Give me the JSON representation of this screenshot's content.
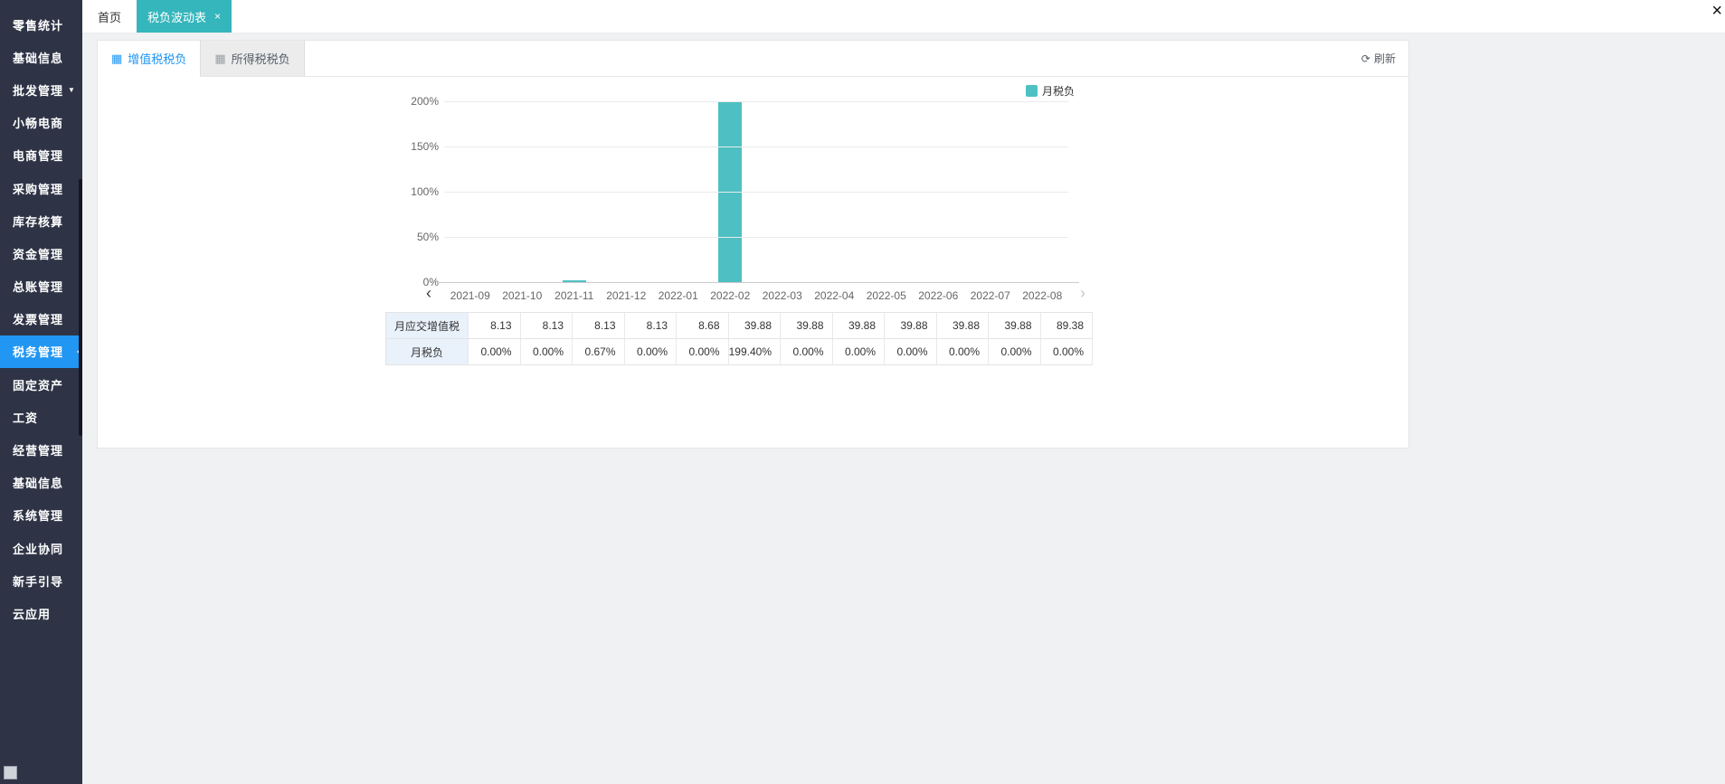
{
  "window": {
    "close_icon": "×"
  },
  "icons": {
    "tab_icon": "▦",
    "refresh_icon": "⟳",
    "caret_icon": "▼",
    "tab_close_icon": "×",
    "prev_icon": "‹",
    "next_icon": "›"
  },
  "colors": {
    "sidebar_bg": "#2e3446",
    "sidebar_active": "#2196f3",
    "doc_tab_teal": "#34b6bc",
    "bar_teal": "#4ec0c3",
    "panel_tab_active_text": "#2196f3",
    "table_label_bg": "#e9f1fb"
  },
  "sidebar": {
    "items": [
      {
        "label": "零售统计"
      },
      {
        "label": "基础信息"
      },
      {
        "label": "批发管理",
        "has_dropdown": true
      },
      {
        "label": "小畅电商"
      },
      {
        "label": "电商管理"
      },
      {
        "label": "采购管理"
      },
      {
        "label": "库存核算"
      },
      {
        "label": "资金管理"
      },
      {
        "label": "总账管理"
      },
      {
        "label": "发票管理"
      },
      {
        "label": "税务管理",
        "active": true
      },
      {
        "label": "固定资产"
      },
      {
        "label": "工资"
      },
      {
        "label": "经营管理"
      },
      {
        "label": "基础信息"
      },
      {
        "label": "系统管理"
      },
      {
        "label": "企业协同"
      },
      {
        "label": "新手引导"
      },
      {
        "label": "云应用"
      }
    ]
  },
  "tabbar": {
    "home_tab": "首页",
    "active_tab": "税负波动表"
  },
  "panel": {
    "tabs": [
      {
        "label": "增值税税负",
        "active": true
      },
      {
        "label": "所得税税负",
        "active": false
      }
    ],
    "refresh_label": "刷新"
  },
  "chart_data": {
    "type": "bar",
    "title": "",
    "categories": [
      "2021-09",
      "2021-10",
      "2021-11",
      "2021-12",
      "2022-01",
      "2022-02",
      "2022-03",
      "2022-04",
      "2022-05",
      "2022-06",
      "2022-07",
      "2022-08"
    ],
    "series": [
      {
        "name": "月税负",
        "values": [
          0,
          0,
          0.67,
          0,
          0,
          199.4,
          0,
          0,
          0,
          0,
          0,
          0
        ]
      }
    ],
    "y_ticks": [
      "200%",
      "150%",
      "100%",
      "50%",
      "0%"
    ],
    "ylim": [
      0,
      200
    ],
    "grid": true,
    "legend_position": "top-right",
    "bar_color": "#4ec0c3"
  },
  "table": {
    "rows": [
      {
        "label": "月应交增值税",
        "values": [
          "8.13",
          "8.13",
          "8.13",
          "8.13",
          "8.68",
          "39.88",
          "39.88",
          "39.88",
          "39.88",
          "39.88",
          "39.88",
          "89.38"
        ]
      },
      {
        "label": "月税负",
        "values": [
          "0.00%",
          "0.00%",
          "0.67%",
          "0.00%",
          "0.00%",
          "199.40%",
          "0.00%",
          "0.00%",
          "0.00%",
          "0.00%",
          "0.00%",
          "0.00%"
        ]
      }
    ]
  }
}
